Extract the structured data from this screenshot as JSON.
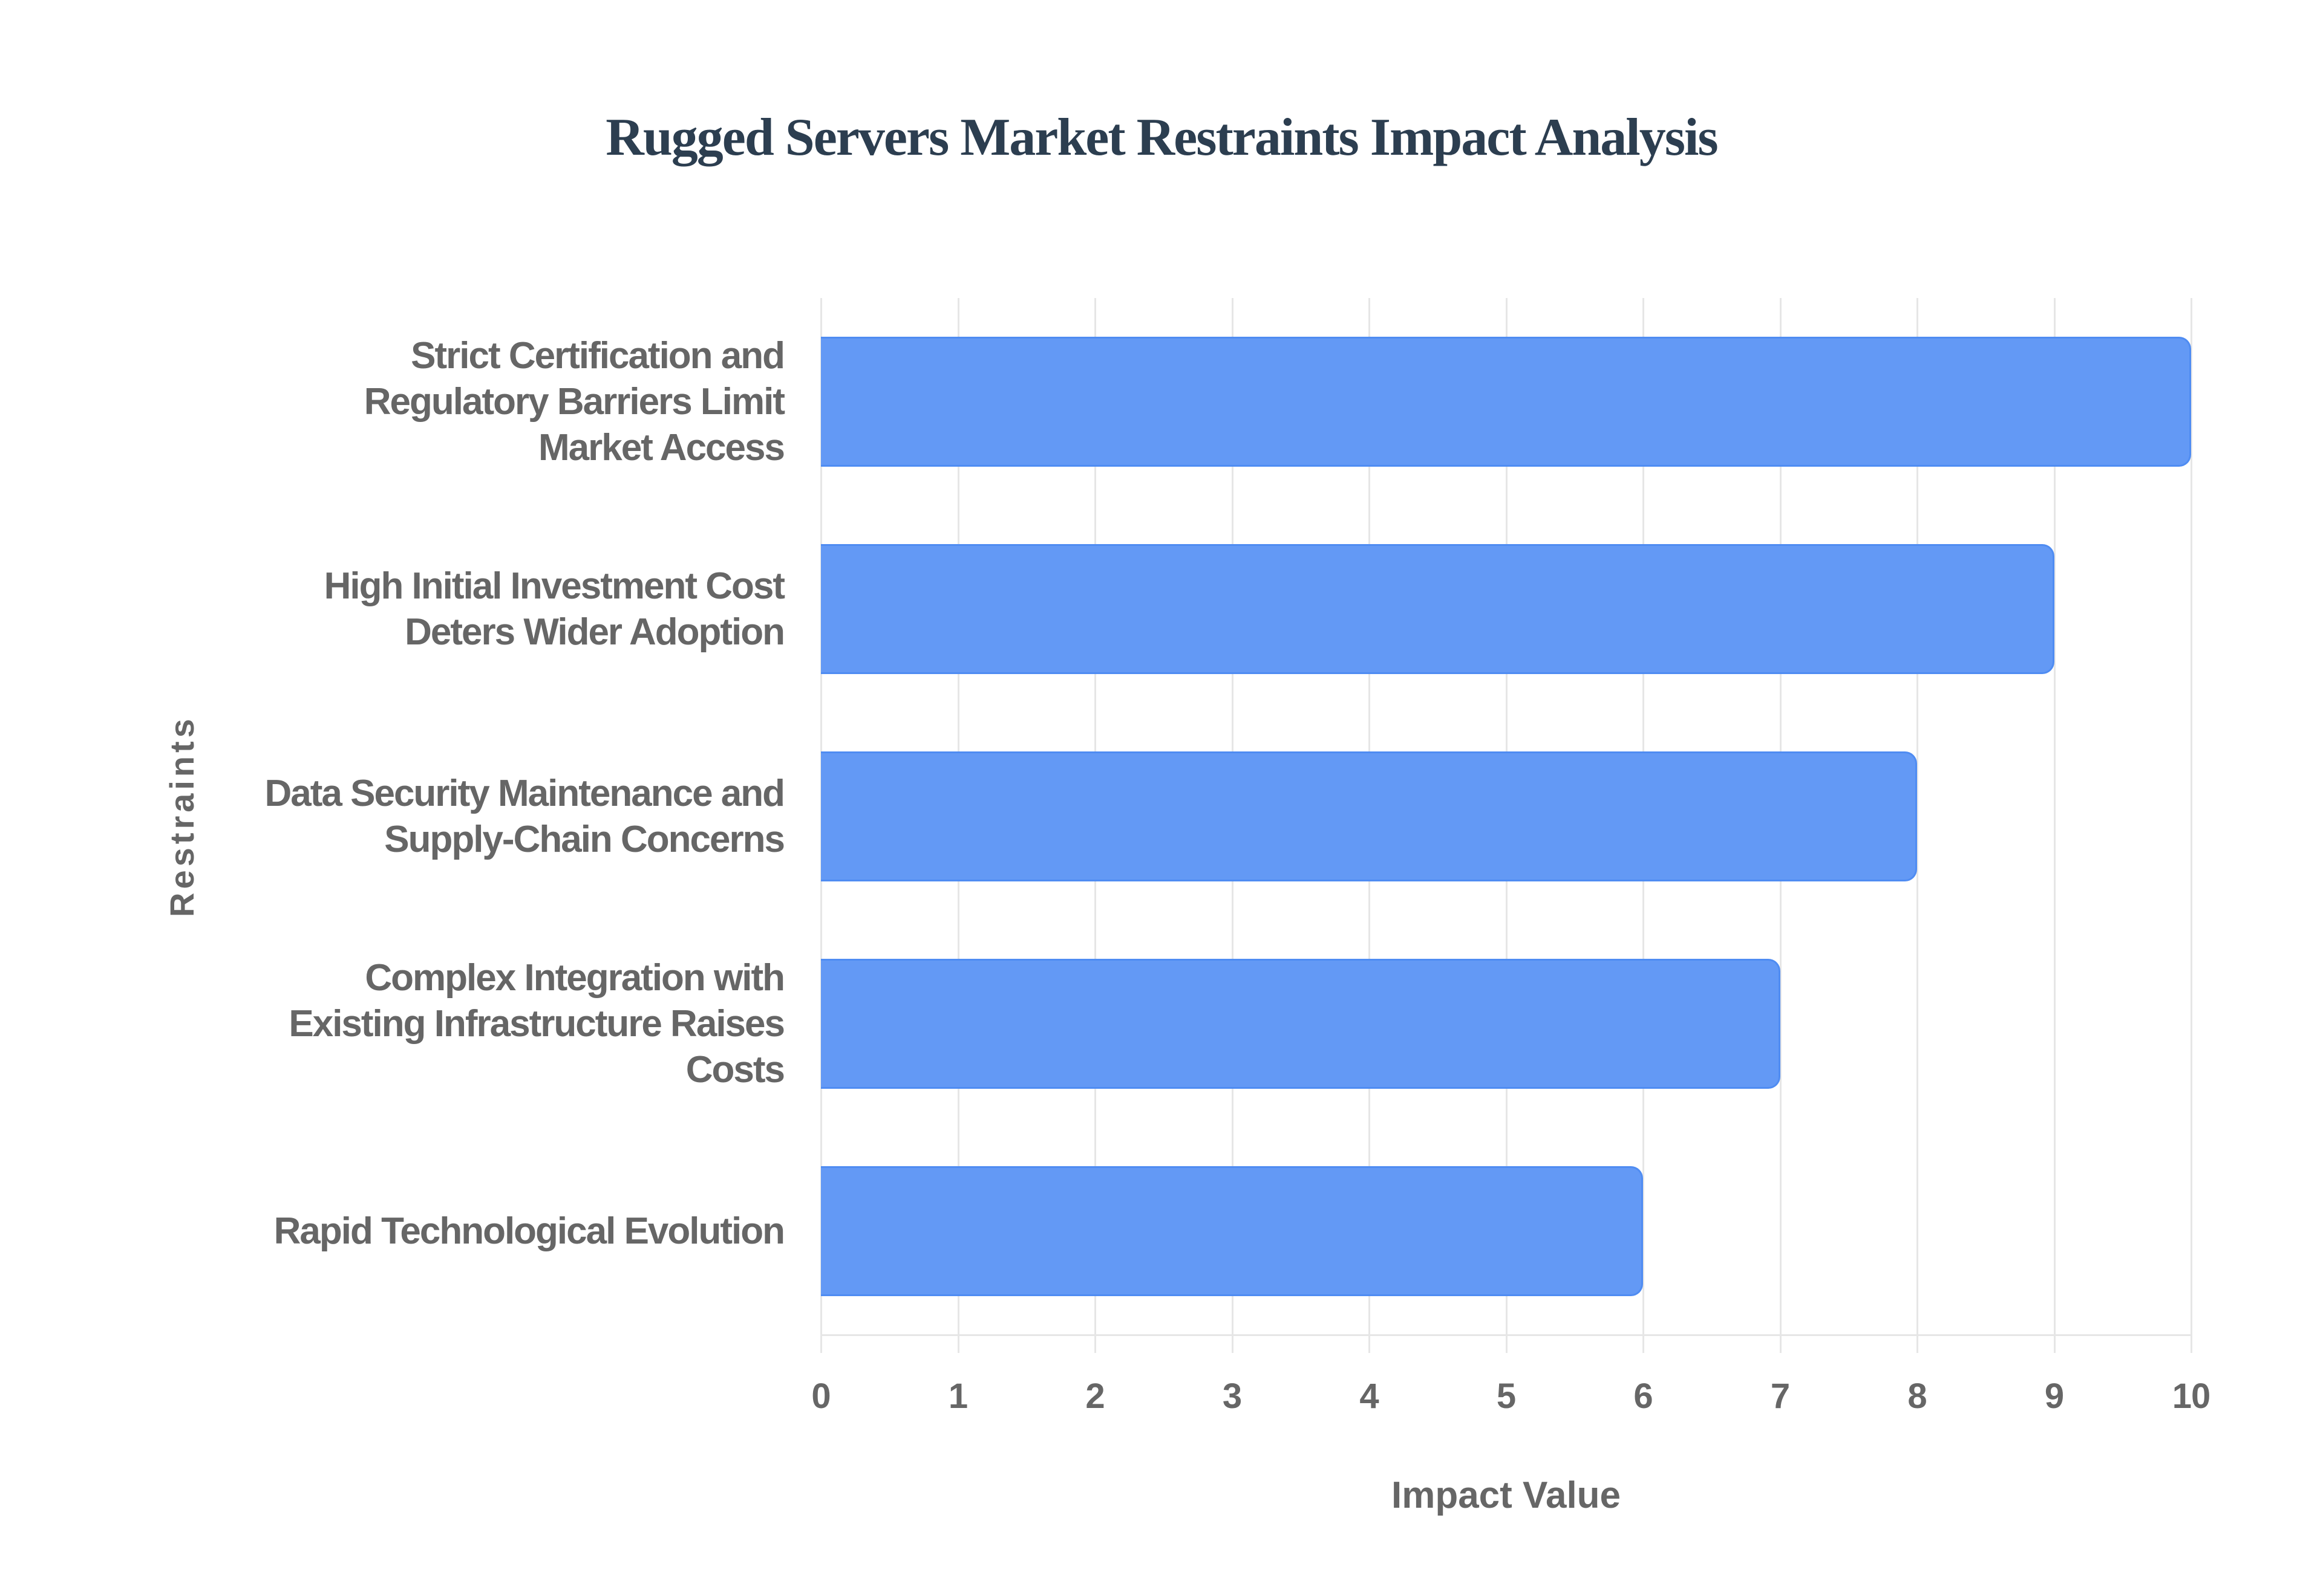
{
  "title": "Rugged Servers Market Restraints Impact Analysis",
  "colors": {
    "title": "#2C3E50",
    "bar_fill": "#6399F5",
    "bar_border": "#4F8CF2",
    "gridline": "#E6E6E6",
    "axis_text": "#666666"
  },
  "x_axis": {
    "title": "Impact Value",
    "ticks": [
      "0",
      "1",
      "2",
      "3",
      "4",
      "5",
      "6",
      "7",
      "8",
      "9",
      "10"
    ],
    "min": 0,
    "max": 10
  },
  "y_axis": {
    "title": "Restraints"
  },
  "bars": [
    {
      "label_lines": [
        "Strict Certification and",
        "Regulatory Barriers Limit",
        "Market Access"
      ],
      "value": 10
    },
    {
      "label_lines": [
        "High Initial Investment Cost",
        "Deters Wider Adoption"
      ],
      "value": 9
    },
    {
      "label_lines": [
        "Data Security Maintenance and",
        "Supply-Chain Concerns"
      ],
      "value": 8
    },
    {
      "label_lines": [
        "Complex Integration with",
        "Existing Infrastructure Raises",
        "Costs"
      ],
      "value": 7
    },
    {
      "label_lines": [
        "Rapid Technological Evolution"
      ],
      "value": 6
    }
  ],
  "chart_data": {
    "type": "bar",
    "orientation": "horizontal",
    "title": "Rugged Servers Market Restraints Impact Analysis",
    "xlabel": "Impact Value",
    "ylabel": "Restraints",
    "categories": [
      "Strict Certification and Regulatory Barriers Limit Market Access",
      "High Initial Investment Cost Deters Wider Adoption",
      "Data Security Maintenance and Supply-Chain Concerns",
      "Complex Integration with Existing Infrastructure Raises Costs",
      "Rapid Technological Evolution"
    ],
    "values": [
      10,
      9,
      8,
      7,
      6
    ],
    "xlim": [
      0,
      10
    ],
    "x_ticks": [
      0,
      1,
      2,
      3,
      4,
      5,
      6,
      7,
      8,
      9,
      10
    ],
    "grid": true,
    "legend": null,
    "bar_color": "#6399F5"
  }
}
